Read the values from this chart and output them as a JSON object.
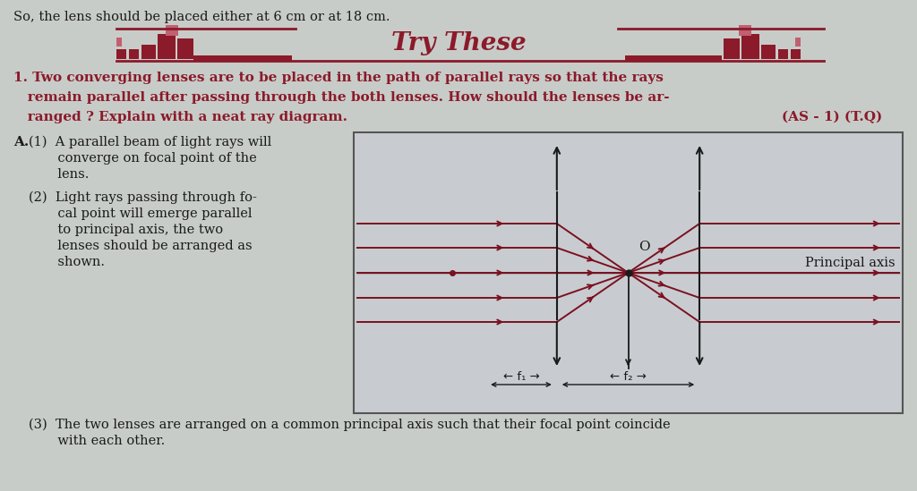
{
  "page_bg": "#c8ccc8",
  "title_text": "Try These",
  "title_color": "#8B1A2A",
  "bar_color": "#8B1A2A",
  "ray_color": "#7B1020",
  "lens_color": "#1a1a1a",
  "diagram_bg": "#c8ccd0",
  "text_color": "#1a1a1a",
  "question_color": "#8B1A2A",
  "header_text": "So, the lens should be placed either at 6 cm or at 18 cm.",
  "principal_axis_label": "Principal axis",
  "center_label": "O",
  "f1_label": "← f₁ →",
  "f2_label": "← f₂ →"
}
